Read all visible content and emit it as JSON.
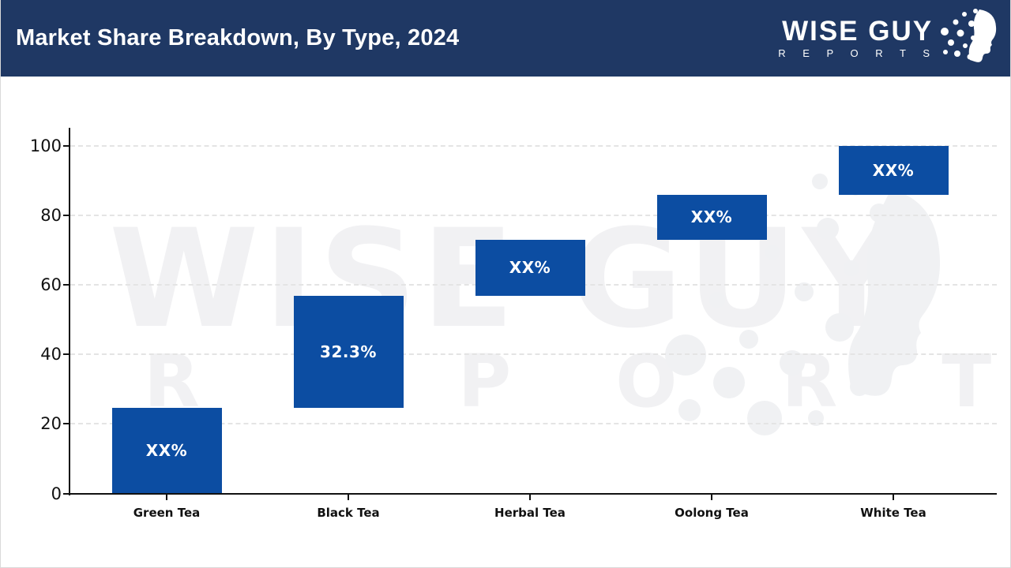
{
  "header": {
    "title": "Market Share Breakdown, By Type, 2024",
    "bg_color": "#1f3864",
    "logo_line1": "WISE GUY",
    "logo_line2": "R E P O R T S"
  },
  "watermark": {
    "line1": "WISE GUY",
    "line2": "R E P O R T S"
  },
  "chart_data": {
    "type": "bar",
    "subtype": "waterfall",
    "title": "Market Share Breakdown, By Type, 2024",
    "categories": [
      "Green Tea",
      "Black Tea",
      "Herbal Tea",
      "Oolong Tea",
      "White Tea"
    ],
    "segments": [
      {
        "category": "Green Tea",
        "start": 0,
        "end": 24.5,
        "label": "XX%"
      },
      {
        "category": "Black Tea",
        "start": 24.5,
        "end": 56.8,
        "label": "32.3%"
      },
      {
        "category": "Herbal Tea",
        "start": 56.8,
        "end": 73.0,
        "label": "XX%"
      },
      {
        "category": "Oolong Tea",
        "start": 73.0,
        "end": 85.9,
        "label": "XX%"
      },
      {
        "category": "White Tea",
        "start": 85.9,
        "end": 100,
        "label": "XX%"
      }
    ],
    "xlabel": "",
    "ylabel": "",
    "yticks": [
      0,
      20,
      40,
      60,
      80,
      100
    ],
    "ylim": [
      0,
      105
    ],
    "grid": "horizontal-dashed",
    "legend": "none",
    "bar_color": "#0c4da2",
    "bar_label_color": "#ffffff"
  }
}
